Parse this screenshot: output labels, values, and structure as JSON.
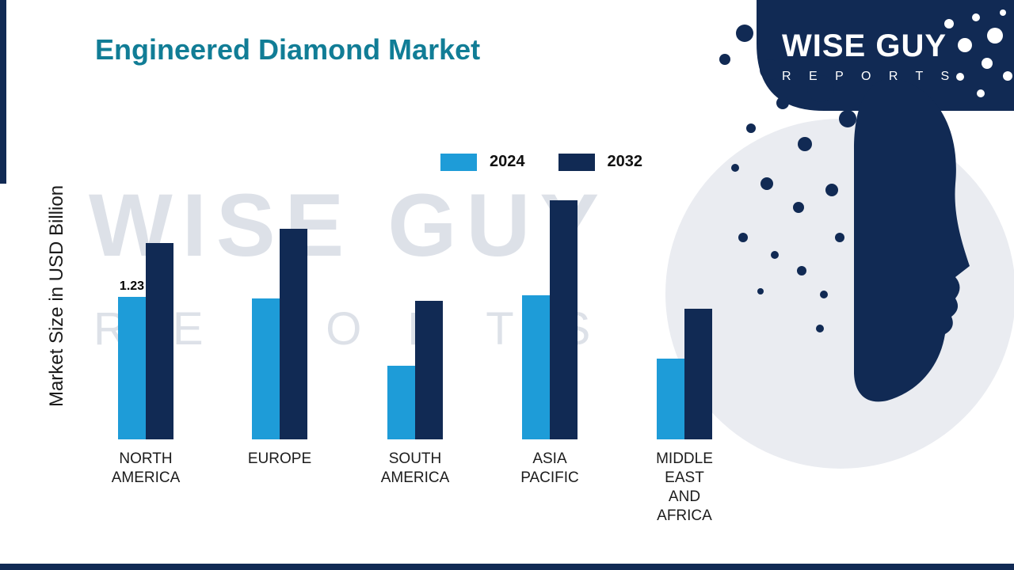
{
  "page": {
    "title": "Engineered Diamond Market"
  },
  "logo": {
    "line1": "WISE GUY",
    "line2": "R E P O R T S"
  },
  "watermark": {
    "line1": "WISE GUY",
    "line2": "REPORTS"
  },
  "colors": {
    "title_teal": "#117d96",
    "bar_blue_2024": "#1e9cd8",
    "bar_navy_2032": "#112a54",
    "accent_navy": "#112a54",
    "watermark_gray": "#dde1e8"
  },
  "chart_data": {
    "type": "bar",
    "title": "Engineered Diamond Market",
    "xlabel": "",
    "ylabel": "Market Size in USD Billion",
    "categories": [
      "NORTH AMERICA",
      "EUROPE",
      "SOUTH AMERICA",
      "ASIA PACIFIC",
      "MIDDLE EAST AND AFRICA"
    ],
    "category_lines": [
      [
        "NORTH",
        "AMERICA"
      ],
      [
        "EUROPE"
      ],
      [
        "SOUTH",
        "AMERICA"
      ],
      [
        "ASIA",
        "PACIFIC"
      ],
      [
        "MIDDLE",
        "EAST",
        "AND",
        "AFRICA"
      ]
    ],
    "series": [
      {
        "name": "2024",
        "color": "#1e9cd8",
        "values": [
          1.23,
          1.22,
          0.64,
          1.25,
          0.7
        ]
      },
      {
        "name": "2032",
        "color": "#112a54",
        "values": [
          1.7,
          1.82,
          1.2,
          2.07,
          1.13
        ]
      }
    ],
    "annotations": [
      {
        "category": "NORTH AMERICA",
        "series": "2024",
        "text": "1.23"
      }
    ],
    "ylim": [
      0,
      2.2
    ],
    "grid": false,
    "legend_position": "top-right"
  }
}
